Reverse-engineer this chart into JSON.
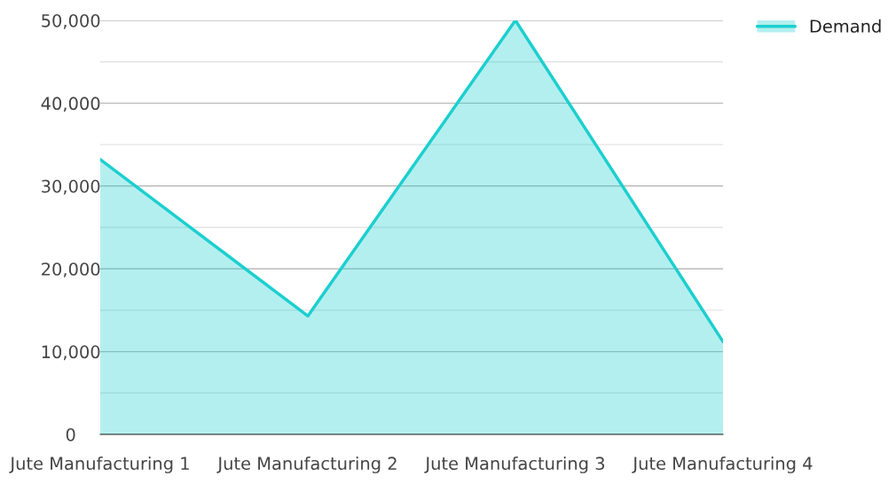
{
  "chart_data": {
    "type": "area",
    "categories": [
      "Jute Manufacturing 1",
      "Jute Manufacturing 2",
      "Jute Manufacturing 3",
      "Jute Manufacturing 4"
    ],
    "series": [
      {
        "name": "Demand",
        "color": "#1ccfcf",
        "values": [
          33200,
          14300,
          50000,
          11200
        ]
      }
    ],
    "ylim": [
      0,
      50000
    ],
    "yticks": [
      0,
      {
        "value": 5000,
        "label": null
      },
      {
        "value": 10000,
        "label": "10,000"
      },
      {
        "value": 15000,
        "label": null
      },
      {
        "value": 20000,
        "label": "20,000"
      },
      {
        "value": 25000,
        "label": null
      },
      {
        "value": 30000,
        "label": "30,000"
      },
      {
        "value": 35000,
        "label": null
      },
      {
        "value": 40000,
        "label": "40,000"
      },
      {
        "value": 45000,
        "label": null
      },
      {
        "value": 50000,
        "label": "50,000"
      }
    ],
    "grid": "y",
    "legend": "top right"
  }
}
